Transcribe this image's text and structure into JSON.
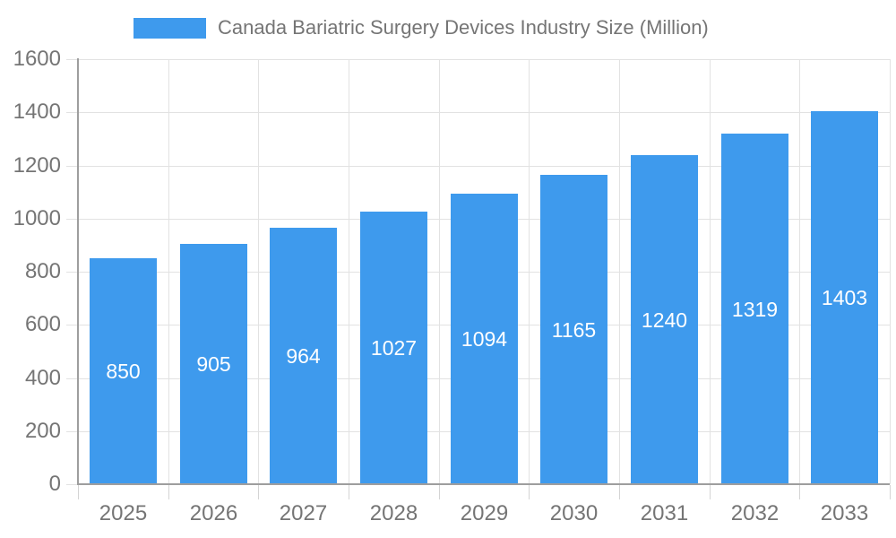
{
  "chart_data": {
    "type": "bar",
    "title": "Canada Bariatric Surgery Devices Industry Size (Million)",
    "legend": {
      "position": "top",
      "entries": [
        "Canada Bariatric Surgery Devices Industry Size (Million)"
      ]
    },
    "categories": [
      "2025",
      "2026",
      "2027",
      "2028",
      "2029",
      "2030",
      "2031",
      "2032",
      "2033"
    ],
    "series": [
      {
        "name": "Canada Bariatric Surgery Devices Industry Size (Million)",
        "values": [
          850,
          905,
          964,
          1027,
          1094,
          1165,
          1240,
          1319,
          1403
        ]
      }
    ],
    "xlabel": "",
    "ylabel": "",
    "ylim": [
      0,
      1600
    ],
    "yticks": [
      0,
      200,
      400,
      600,
      800,
      1000,
      1200,
      1400,
      1600
    ],
    "grid": true,
    "bar_value_labels_inside": true,
    "colors": {
      "bar": "#3E9AED",
      "bar_label": "#FFFFFF",
      "axis_text": "#757575",
      "grid_line": "#E2E2E2",
      "axis_line": "#9E9E9E",
      "tick_line": "#D4D4D4",
      "background": "#FFFFFF"
    }
  }
}
